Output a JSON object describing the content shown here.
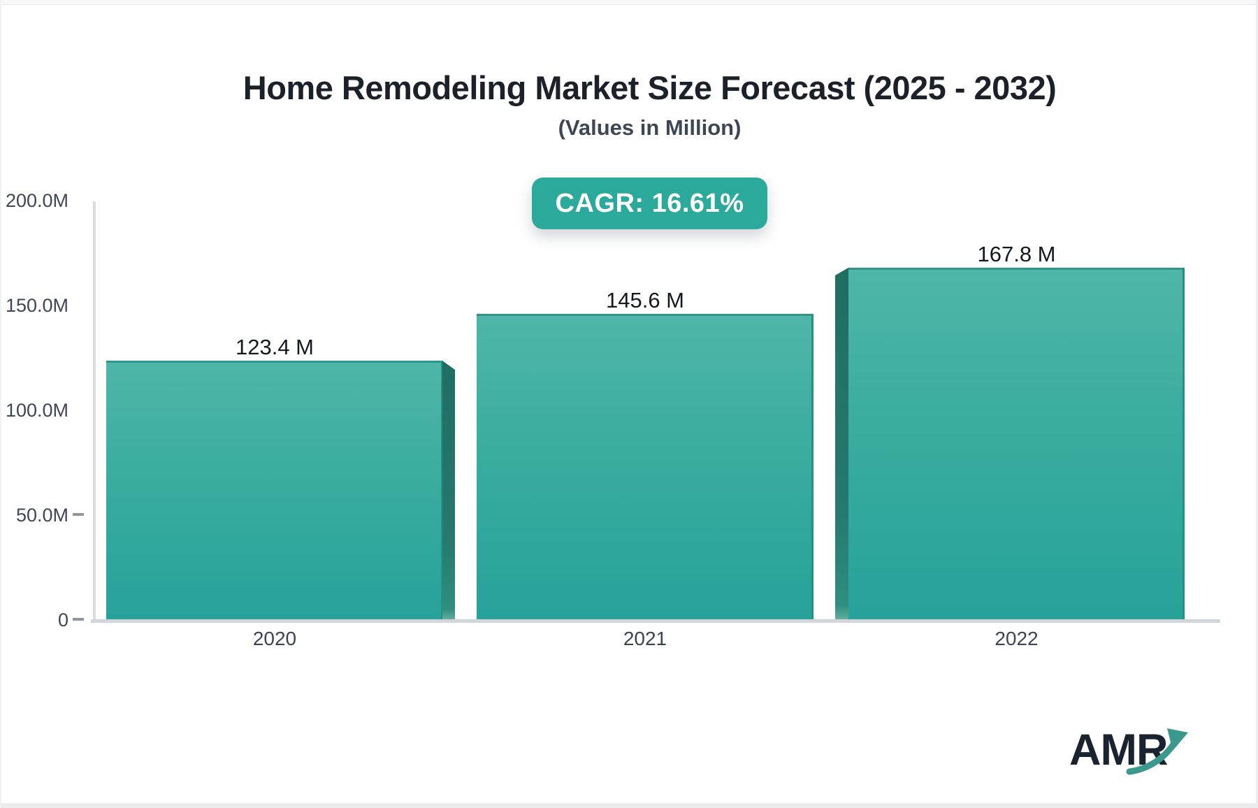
{
  "header": {
    "title": "Home Remodeling Market Size Forecast (2025 - 2032)",
    "subtitle": "(Values in Million)",
    "cagr_badge": "CAGR: 16.61%"
  },
  "chart_data": {
    "type": "bar",
    "title": "Home Remodeling Market Size Forecast (2025 - 2032)",
    "subtitle": "(Values in Million)",
    "annotation": "CAGR: 16.61%",
    "categories": [
      "2020",
      "2021",
      "2022"
    ],
    "values": [
      123.4,
      145.6,
      167.8
    ],
    "value_labels": [
      "123.4 M",
      "145.6 M",
      "167.8 M"
    ],
    "unit": "Million",
    "xlabel": "",
    "ylabel": "",
    "ylim": [
      0,
      200
    ],
    "ytick_interval": 50,
    "ytick_labels": [
      "200.0M",
      "150.0M",
      "100.0M",
      "50.0M",
      "0"
    ],
    "grid": false,
    "legend": "none",
    "bar_style": "pseudo-3d-teal-gradient"
  },
  "colors": {
    "accent_teal": "#2ba99b",
    "bar_gradient_top": "#4fb6a9",
    "bar_gradient_bottom": "#26a298",
    "bar_side_dark": "#206d62",
    "axis_line": "#d2d5da",
    "text_dark": "#1c2029",
    "text_slate": "#3e4654"
  },
  "logo": {
    "text": "AMR",
    "arrow_icon": "trend-up-arrow"
  }
}
